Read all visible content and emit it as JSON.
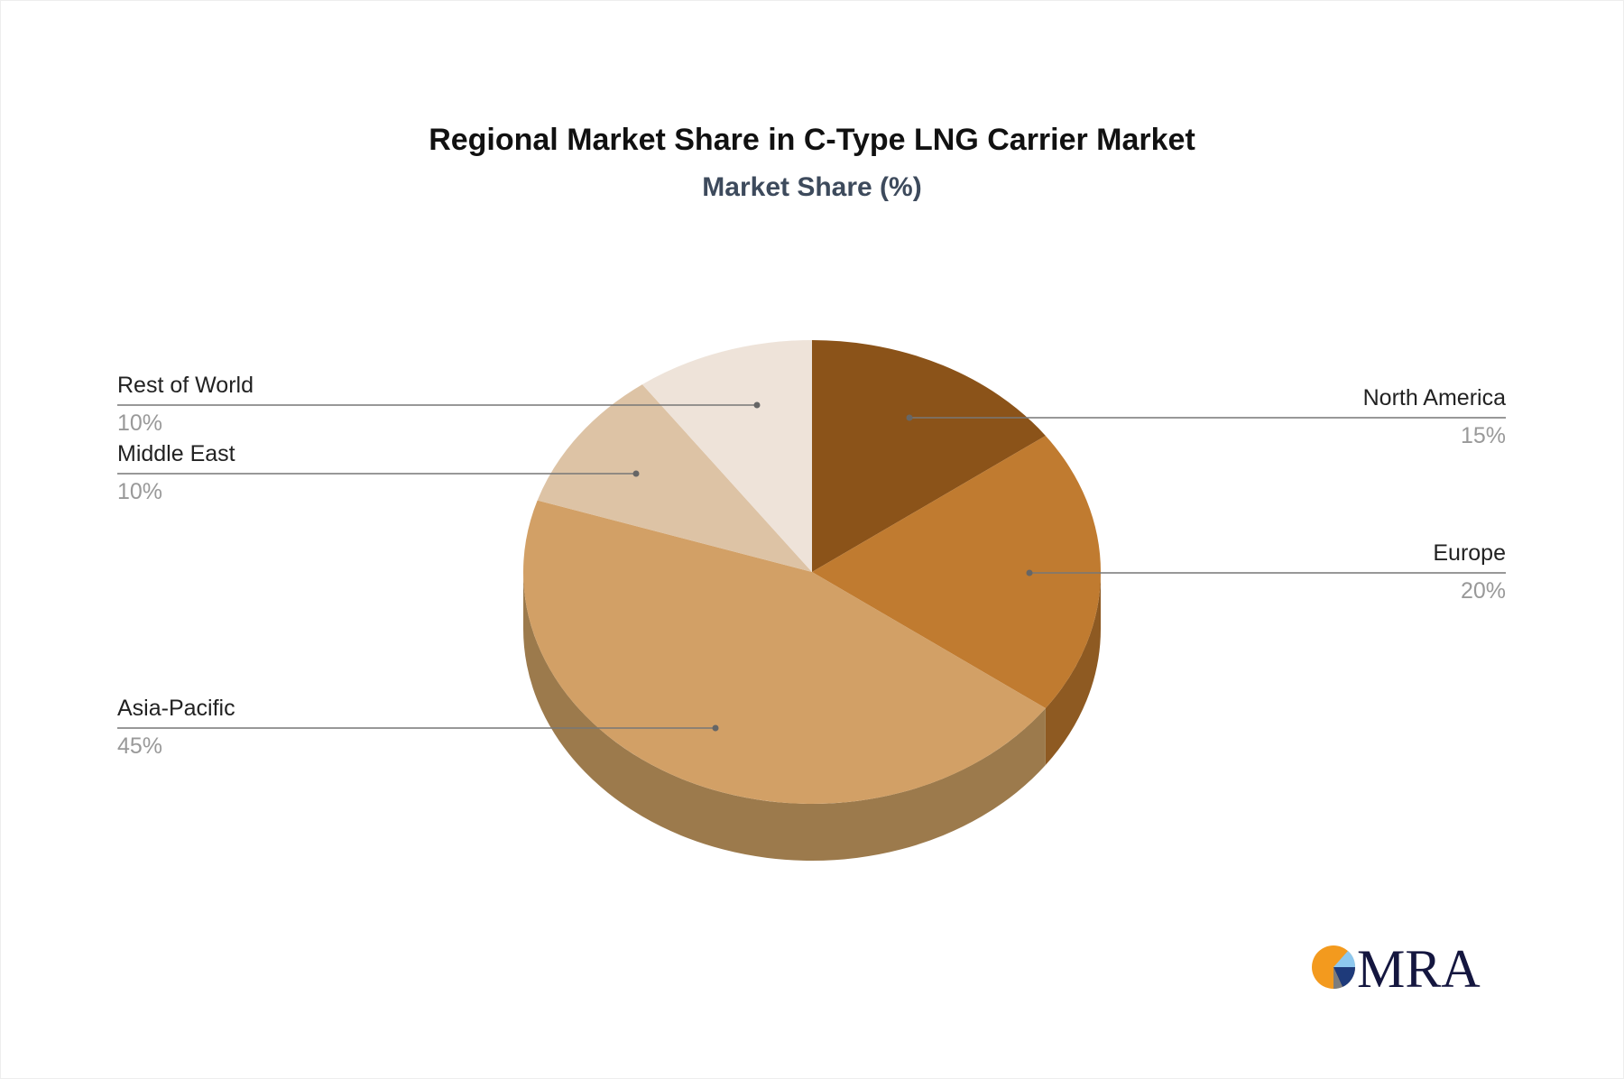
{
  "chart_data": {
    "type": "pie",
    "title": "Regional Market Share in C-Type LNG Carrier Market",
    "subtitle": "Market Share (%)",
    "style": "3d",
    "legend": "callout labels",
    "slices": [
      {
        "label": "North America",
        "value": 15,
        "display": "15%",
        "color": "#8B5319",
        "side": "#6E4214"
      },
      {
        "label": "Europe",
        "value": 20,
        "display": "20%",
        "color": "#C07B30",
        "side": "#8E5A22"
      },
      {
        "label": "Asia-Pacific",
        "value": 45,
        "display": "45%",
        "color": "#D2A066",
        "side": "#9C7A4C"
      },
      {
        "label": "Middle East",
        "value": 10,
        "display": "10%",
        "color": "#DDC3A5",
        "side": "#A89077"
      },
      {
        "label": "Rest of World",
        "value": 10,
        "display": "10%",
        "color": "#EEE3D9",
        "side": "#B8AEA5"
      }
    ]
  },
  "logo": {
    "text": "MRA"
  }
}
